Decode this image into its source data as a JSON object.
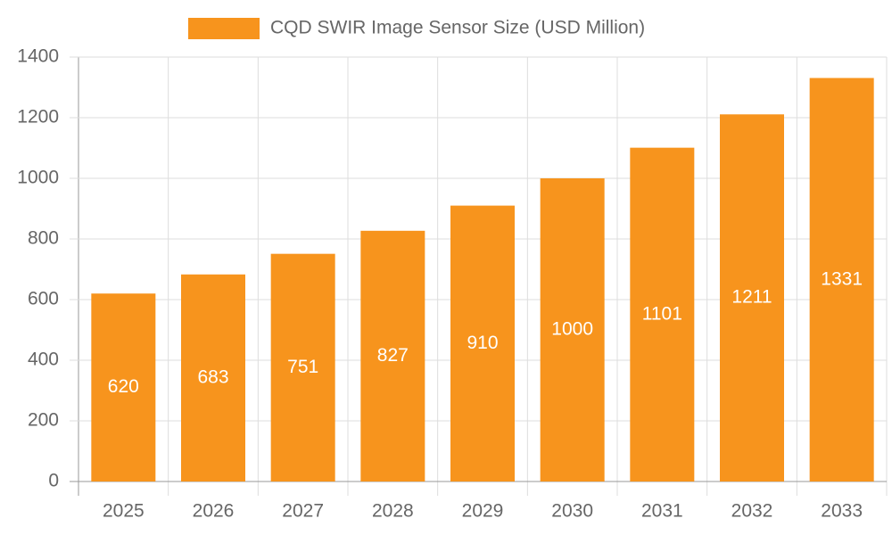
{
  "chart_data": {
    "type": "bar",
    "categories": [
      "2025",
      "2026",
      "2027",
      "2028",
      "2029",
      "2030",
      "2031",
      "2032",
      "2033"
    ],
    "series": [
      {
        "name": "CQD SWIR Image Sensor Size (USD Million)",
        "color": "#f7941d",
        "values": [
          620,
          683,
          751,
          827,
          910,
          1000,
          1101,
          1211,
          1331
        ]
      }
    ],
    "ylim": [
      0,
      1400
    ],
    "yticks": [
      0,
      200,
      400,
      600,
      800,
      1000,
      1200,
      1400
    ],
    "grid": true,
    "legend": "top"
  }
}
